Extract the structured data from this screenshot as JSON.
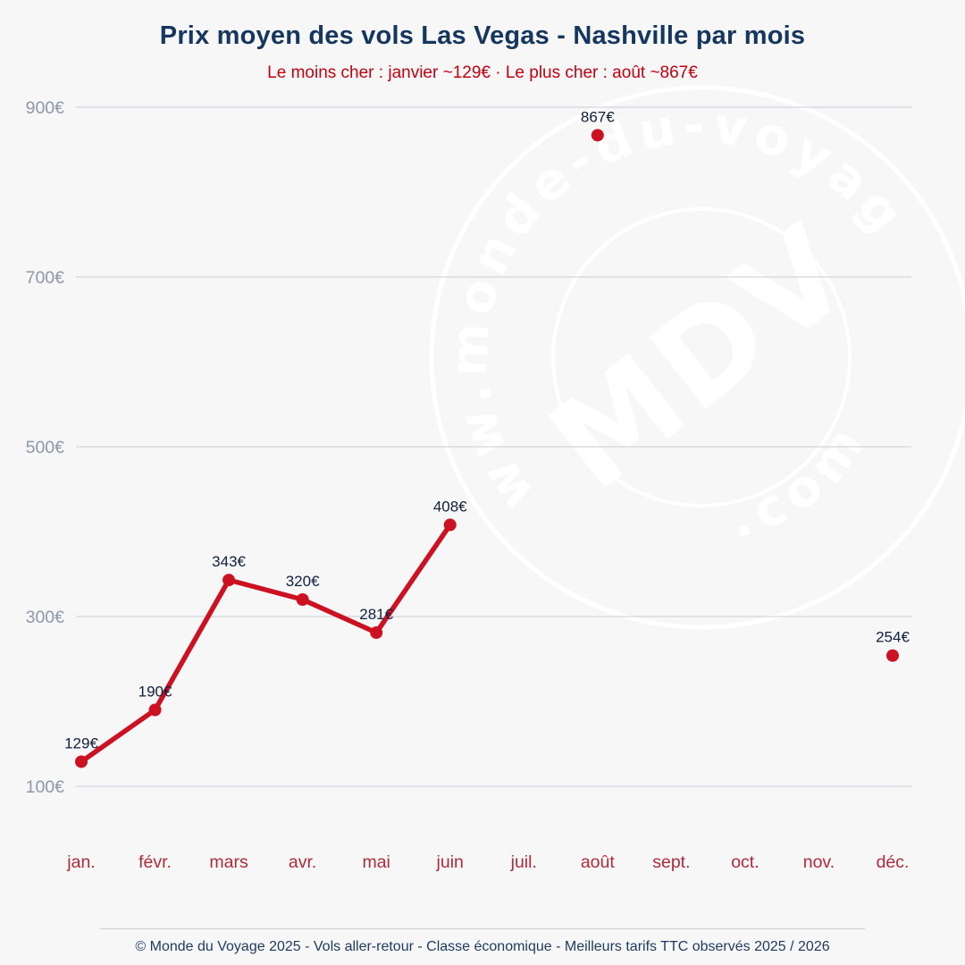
{
  "header": {
    "title": "Prix moyen des vols Las Vegas - Nashville par mois",
    "subtitle": "Le moins cher : janvier ~129€ · Le plus cher : août ~867€"
  },
  "chart_data": {
    "type": "line",
    "title": "Prix moyen des vols Las Vegas - Nashville par mois",
    "categories": [
      "jan.",
      "févr.",
      "mars",
      "avr.",
      "mai",
      "juin",
      "juil.",
      "août",
      "sept.",
      "oct.",
      "nov.",
      "déc."
    ],
    "values": [
      129,
      190,
      343,
      320,
      281,
      408,
      null,
      867,
      null,
      null,
      null,
      254
    ],
    "point_labels": [
      "129€",
      "190€",
      "343€",
      "320€",
      "281€",
      "408€",
      null,
      "867€",
      null,
      null,
      null,
      "254€"
    ],
    "y_ticks": [
      100,
      300,
      500,
      700,
      900
    ],
    "y_tick_labels": [
      "100€",
      "300€",
      "500€",
      "700€",
      "900€"
    ],
    "ylim": [
      100,
      900
    ],
    "grid": true,
    "legend": "none",
    "line_color": "#cc1122",
    "point_label_color": "#10203d",
    "y_label_color": "#8d98a8",
    "x_label_color": "#b02a3a",
    "grid_color": "#c7cfda",
    "notes": "Line connects jan.–juin; août and déc. are isolated points; no data for juil., sept., oct., nov."
  },
  "watermark": {
    "ring_text_top": "www.monde-du-voyage",
    "ring_text_bottom": ".com",
    "center_text": "MDV",
    "color": "#ffffff"
  },
  "footer": {
    "text": "© Monde du Voyage 2025 - Vols aller-retour - Classe économique - Meilleurs tarifs TTC observés 2025 / 2026"
  }
}
